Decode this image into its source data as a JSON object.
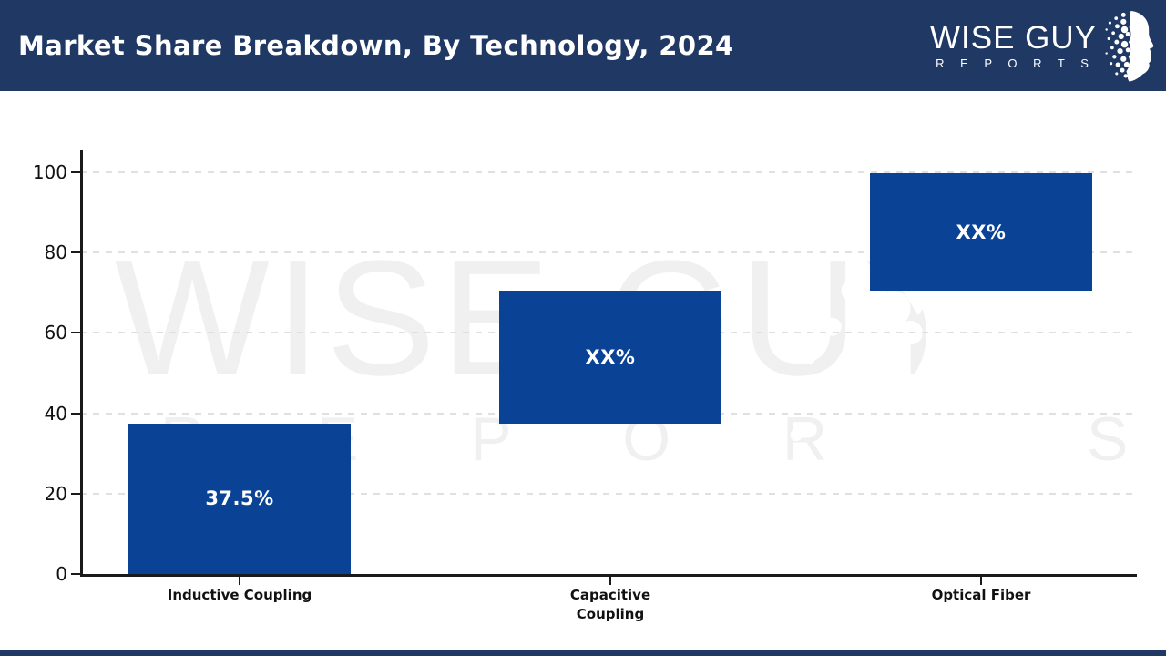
{
  "header": {
    "title": "Market Share Breakdown, By Technology, 2024",
    "logo": {
      "wordmark": "WISE GUY",
      "subtitle": "R E P O R T S"
    }
  },
  "watermark": {
    "wordmark": "WISE GUY",
    "subtitle": "R E P O R T S"
  },
  "colors": {
    "header_bg": "#1f3864",
    "footer_bg": "#1f3864",
    "bar_fill": "#0a4296",
    "bar_label_text": "#ffffff",
    "gridline": "#e0e0e0",
    "axis": "#1a1a1a",
    "tick_label_text": "#111111",
    "watermark_text": "#f0f0f0",
    "background": "#ffffff"
  },
  "chart_data": {
    "type": "bar",
    "subtype": "floating-waterfall",
    "title": "Market Share Breakdown, By Technology, 2024",
    "categories": [
      "Inductive Coupling",
      "Capacitive Coupling",
      "Optical Fiber"
    ],
    "category_lines": [
      [
        "Inductive Coupling"
      ],
      [
        "Capacitive",
        "Coupling"
      ],
      [
        "Optical Fiber"
      ]
    ],
    "series": [
      {
        "name": "Market Share (%)",
        "segments": [
          {
            "category": "Inductive Coupling",
            "start": 0,
            "end": 37.5,
            "label": "37.5%"
          },
          {
            "category": "Capacitive Coupling",
            "start": 37.5,
            "end": 70.5,
            "label": "XX%"
          },
          {
            "category": "Optical Fiber",
            "start": 70.5,
            "end": 99.7,
            "label": "XX%"
          }
        ]
      }
    ],
    "ylim": [
      0,
      100
    ],
    "yticks": [
      0,
      20,
      40,
      60,
      80,
      100
    ],
    "xlabel": "",
    "ylabel": "",
    "grid": "horizontal dashed",
    "legend": "none",
    "bar_color": "#0a4296"
  }
}
